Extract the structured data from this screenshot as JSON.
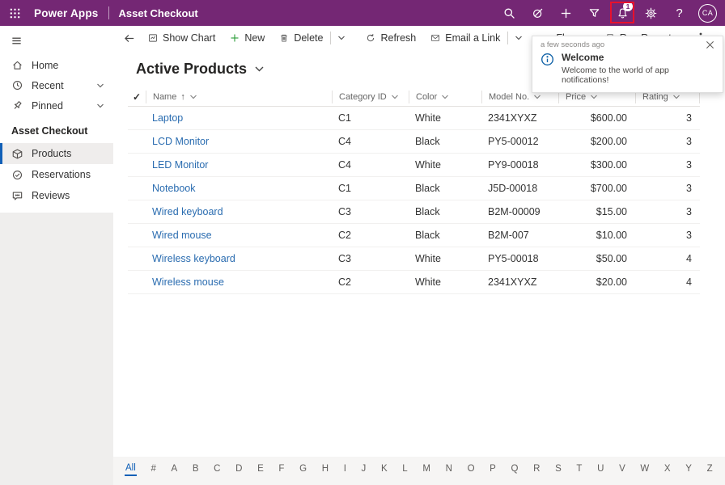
{
  "topbar": {
    "app_name": "Power Apps",
    "app_title": "Asset Checkout",
    "notification_count": "1",
    "avatar_initials": "CA",
    "help_label": "?"
  },
  "commands": {
    "show_chart": "Show Chart",
    "new": "New",
    "delete": "Delete",
    "refresh": "Refresh",
    "email_link": "Email a Link",
    "flow": "Flow",
    "run_report": "Run Report"
  },
  "sidebar": {
    "top_items": [
      {
        "label": "Home",
        "icon": "home-icon",
        "chevron": false
      },
      {
        "label": "Recent",
        "icon": "clock-icon",
        "chevron": true
      },
      {
        "label": "Pinned",
        "icon": "pin-icon",
        "chevron": true
      }
    ],
    "group_label": "Asset Checkout",
    "entities": [
      {
        "label": "Products",
        "icon": "cube-icon",
        "selected": true
      },
      {
        "label": "Reservations",
        "icon": "check-circle-icon",
        "selected": false
      },
      {
        "label": "Reviews",
        "icon": "comment-icon",
        "selected": false
      }
    ]
  },
  "view": {
    "title": "Active Products"
  },
  "grid": {
    "columns": [
      {
        "label": "Name",
        "sorted": "asc",
        "align": "left"
      },
      {
        "label": "Category ID",
        "align": "left"
      },
      {
        "label": "Color",
        "align": "left"
      },
      {
        "label": "Model No.",
        "align": "left"
      },
      {
        "label": "Price",
        "align": "right"
      },
      {
        "label": "Rating",
        "align": "right"
      }
    ],
    "rows": [
      {
        "name": "Laptop",
        "category_id": "C1",
        "color": "White",
        "model_no": "2341XYXZ",
        "price": "$600.00",
        "rating": "3"
      },
      {
        "name": "LCD Monitor",
        "category_id": "C4",
        "color": "Black",
        "model_no": "PY5-00012",
        "price": "$200.00",
        "rating": "3"
      },
      {
        "name": "LED Monitor",
        "category_id": "C4",
        "color": "White",
        "model_no": "PY9-00018",
        "price": "$300.00",
        "rating": "3"
      },
      {
        "name": "Notebook",
        "category_id": "C1",
        "color": "Black",
        "model_no": "J5D-00018",
        "price": "$700.00",
        "rating": "3"
      },
      {
        "name": "Wired keyboard",
        "category_id": "C3",
        "color": "Black",
        "model_no": "B2M-00009",
        "price": "$15.00",
        "rating": "3"
      },
      {
        "name": "Wired mouse",
        "category_id": "C2",
        "color": "Black",
        "model_no": "B2M-007",
        "price": "$10.00",
        "rating": "3"
      },
      {
        "name": "Wireless keyboard",
        "category_id": "C3",
        "color": "White",
        "model_no": "PY5-00018",
        "price": "$50.00",
        "rating": "4"
      },
      {
        "name": "Wireless mouse",
        "category_id": "C2",
        "color": "White",
        "model_no": "2341XYXZ",
        "price": "$20.00",
        "rating": "4"
      }
    ]
  },
  "jumpbar": {
    "selected": "All",
    "items": [
      "All",
      "#",
      "A",
      "B",
      "C",
      "D",
      "E",
      "F",
      "G",
      "H",
      "I",
      "J",
      "K",
      "L",
      "M",
      "N",
      "O",
      "P",
      "Q",
      "R",
      "S",
      "T",
      "U",
      "V",
      "W",
      "X",
      "Y",
      "Z"
    ]
  },
  "toast": {
    "timestamp": "a few seconds ago",
    "title": "Welcome",
    "message": "Welcome to the world of app notifications!"
  },
  "colors": {
    "brand_purple": "#742774",
    "accent_blue": "#1160b7",
    "link_blue": "#2a6cb0",
    "annotation_red": "#e8112d",
    "new_button_green": "#2d9d3a"
  }
}
